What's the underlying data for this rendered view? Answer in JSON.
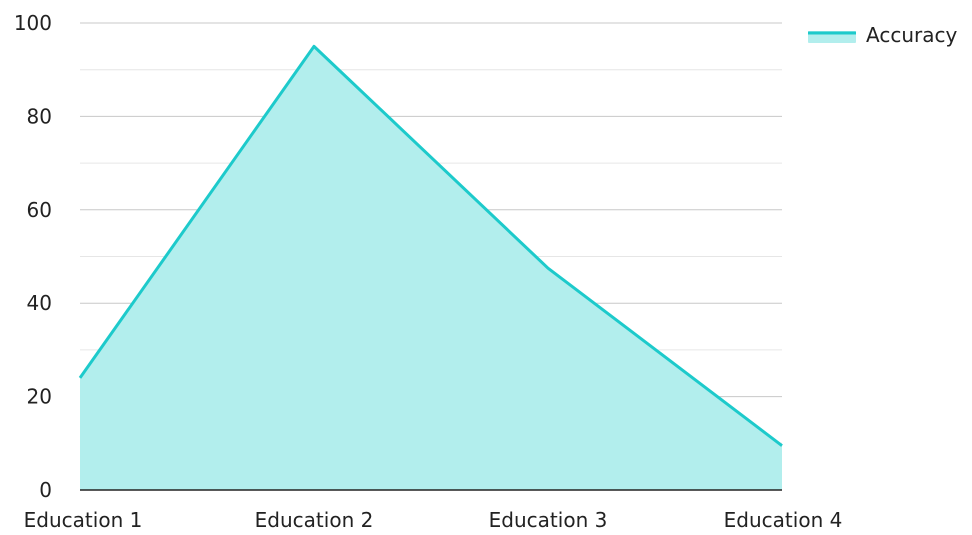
{
  "chart_data": {
    "type": "area",
    "title": "",
    "xlabel": "",
    "ylabel": "",
    "categories": [
      "Education 1",
      "Education 2",
      "Education 3",
      "Education 4"
    ],
    "series": [
      {
        "name": "Accuracy",
        "values": [
          24,
          95,
          47.5,
          9.5
        ],
        "line_color": "#1dcacb",
        "fill_color": "#b2eeed"
      }
    ],
    "ylim": [
      0,
      100
    ],
    "y_ticks": [
      "0",
      "20",
      "40",
      "60",
      "80",
      "100"
    ],
    "y_tick_values": [
      0,
      20,
      40,
      60,
      80,
      100
    ],
    "minor_grid_values": [
      10,
      30,
      50,
      70,
      90
    ],
    "grid": true,
    "legend_position": "top-right",
    "colors": {
      "grid_major": "#c8c8c8",
      "grid_minor": "#e6e6e6",
      "axis": "#222222"
    }
  }
}
